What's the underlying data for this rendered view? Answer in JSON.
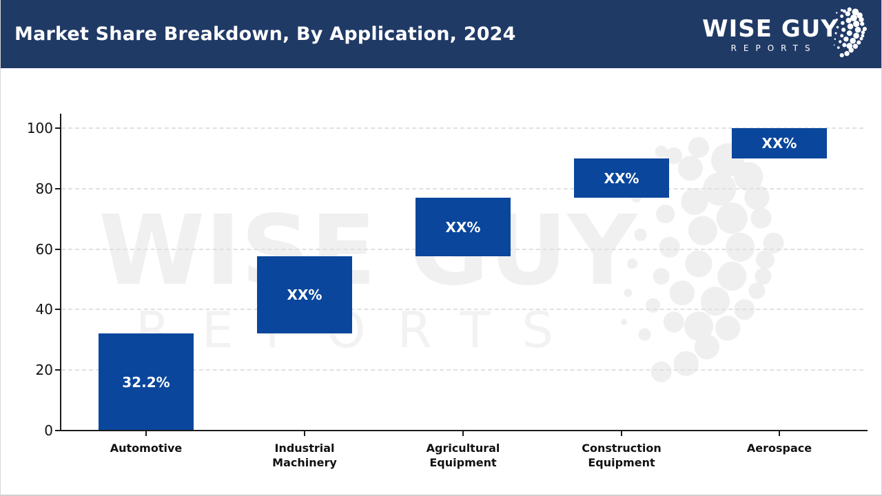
{
  "header": {
    "title": "Market Share Breakdown, By Application, 2024",
    "bg_color": "#203a66",
    "logo": {
      "line1": "WISE GUY",
      "line2": "REPORTS"
    }
  },
  "watermark": {
    "line1": "WISE GUY",
    "line2": "REPORTS"
  },
  "chart_data": {
    "type": "bar",
    "variant": "floating-waterfall",
    "title": "Market Share Breakdown, By Application, 2024",
    "categories": [
      "Automotive",
      "Industrial Machinery",
      "Agricultural Equipment",
      "Construction Equipment",
      "Aerospace"
    ],
    "bars": [
      {
        "category": "Automotive",
        "start": 0,
        "end": 32.2,
        "label": "32.2%"
      },
      {
        "category": "Industrial Machinery",
        "start": 32.2,
        "end": 57.6,
        "label": "XX%"
      },
      {
        "category": "Agricultural Equipment",
        "start": 57.6,
        "end": 77,
        "label": "XX%"
      },
      {
        "category": "Construction Equipment",
        "start": 77,
        "end": 90,
        "label": "XX%"
      },
      {
        "category": "Aerospace",
        "start": 90,
        "end": 100,
        "label": "XX%"
      }
    ],
    "xlabel": "",
    "ylabel": "",
    "ylim": [
      0,
      100
    ],
    "yticks": [
      0,
      20,
      40,
      60,
      80,
      100
    ],
    "grid": "horizontal-dashed",
    "legend": "none",
    "bar_color": "#0a469c",
    "bar_label_color": "#ffffff",
    "axis_color": "#1a1a1a"
  }
}
